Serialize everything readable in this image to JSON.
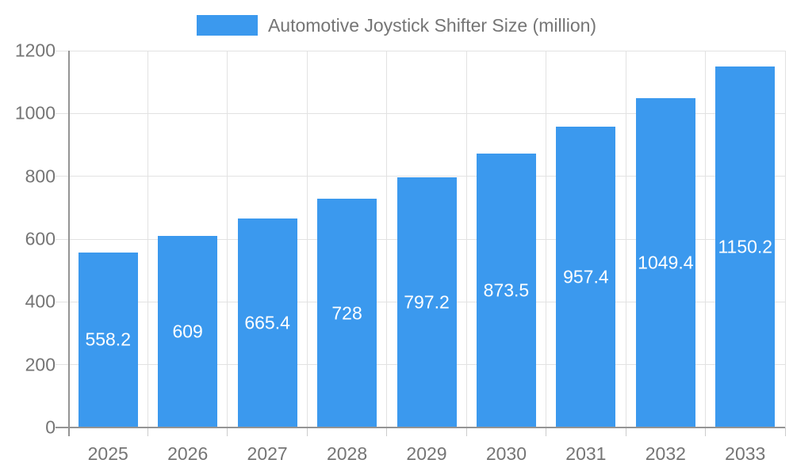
{
  "chart_data": {
    "type": "bar",
    "title": "",
    "legend": {
      "label": "Automotive Joystick Shifter Size (million)",
      "position": "top"
    },
    "categories": [
      "2025",
      "2026",
      "2027",
      "2028",
      "2029",
      "2030",
      "2031",
      "2032",
      "2033"
    ],
    "series": [
      {
        "name": "Automotive Joystick Shifter Size (million)",
        "values": [
          558.2,
          609,
          665.4,
          728,
          797.2,
          873.5,
          957.4,
          1049.4,
          1150.2
        ],
        "value_labels": [
          "558.2",
          "609",
          "665.4",
          "728",
          "797.2",
          "873.5",
          "957.4",
          "1049.4",
          "1150.2"
        ]
      }
    ],
    "xlabel": "",
    "ylabel": "",
    "ylim": [
      0,
      1200
    ],
    "y_ticks": [
      0,
      200,
      400,
      600,
      800,
      1000,
      1200
    ],
    "grid": true,
    "value_labels_inside_bars": true,
    "colors": {
      "bar": "#3B99EE",
      "axis_text": "#757575",
      "bar_label_text": "#FFFFFF",
      "grid_line": "#E2E2E2",
      "axis_line": "#949494",
      "background": "#FFFFFF"
    }
  }
}
